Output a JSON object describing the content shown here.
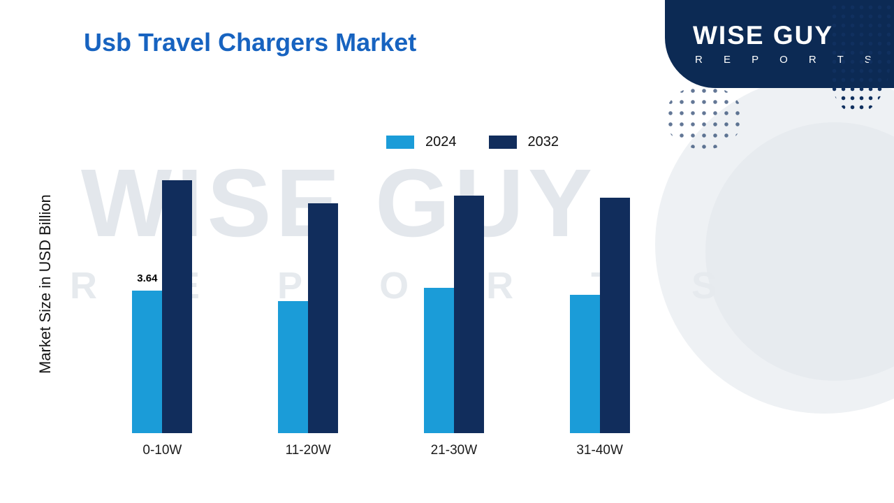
{
  "title": "Usb Travel Chargers Market",
  "ylabel": "Market Size in USD Billion",
  "watermark": {
    "line1": "WISE GUY",
    "line2": "R E P O R T S"
  },
  "logo": {
    "brand": "WISE GUY",
    "sub": "R E P O R T S",
    "bg_color": "#0c2a54"
  },
  "colors": {
    "title_blue": "#1763c0",
    "series_2024": "#1b9cd8",
    "series_2032": "#112d5c"
  },
  "chart_data": {
    "type": "bar",
    "title": "Usb Travel Chargers Market",
    "xlabel": "",
    "ylabel": "Market Size in USD Billion",
    "categories": [
      "0-10W",
      "11-20W",
      "21-30W",
      "31-40W"
    ],
    "series": [
      {
        "name": "2024",
        "color": "#1b9cd8",
        "values": [
          3.64,
          3.37,
          3.71,
          3.53
        ]
      },
      {
        "name": "2032",
        "color": "#112d5c",
        "values": [
          6.46,
          5.88,
          6.07,
          6.02
        ]
      }
    ],
    "ylim": [
      0,
      7
    ],
    "grid": false,
    "legend_position": "top-center",
    "bar_label": {
      "series": "2024",
      "category": "0-10W",
      "text": "3.64"
    }
  }
}
